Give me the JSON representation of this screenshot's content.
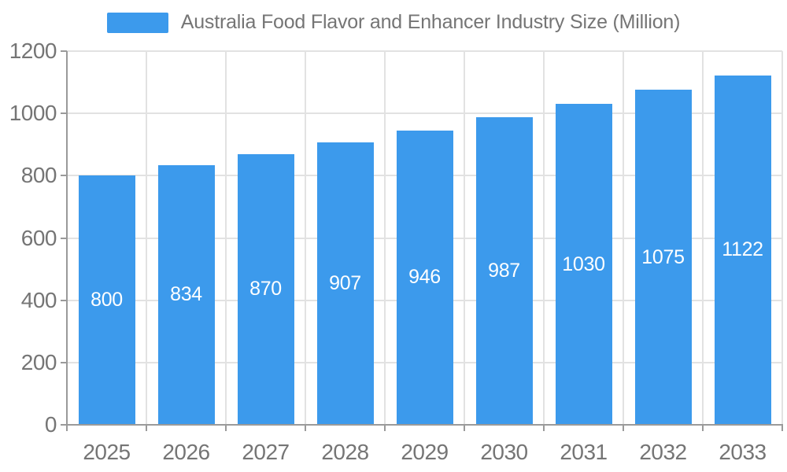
{
  "chart_data": {
    "type": "bar",
    "title": "Australia Food Flavor and Enhancer Industry Size (Million)",
    "legend": {
      "position": "top",
      "entry": "Australia Food Flavor and Enhancer Industry Size (Million)"
    },
    "categories": [
      "2025",
      "2026",
      "2027",
      "2028",
      "2029",
      "2030",
      "2031",
      "2032",
      "2033"
    ],
    "series": [
      {
        "name": "Australia Food Flavor and Enhancer Industry Size (Million)",
        "values": [
          800,
          834,
          870,
          907,
          946,
          987,
          1030,
          1075,
          1122
        ]
      }
    ],
    "xlabel": "",
    "ylabel": "",
    "ylim": [
      0,
      1200
    ],
    "yticks": [
      0,
      200,
      400,
      600,
      800,
      1000,
      1200
    ],
    "grid": true,
    "bar_labels_inside": true,
    "colors": {
      "bar": "#3C9AEC",
      "bar_label": "#FFFFFF",
      "grid_line": "#E2E2E2",
      "axis_line": "#9A9A9A",
      "tick_label": "#757575",
      "title": "#757575"
    }
  }
}
